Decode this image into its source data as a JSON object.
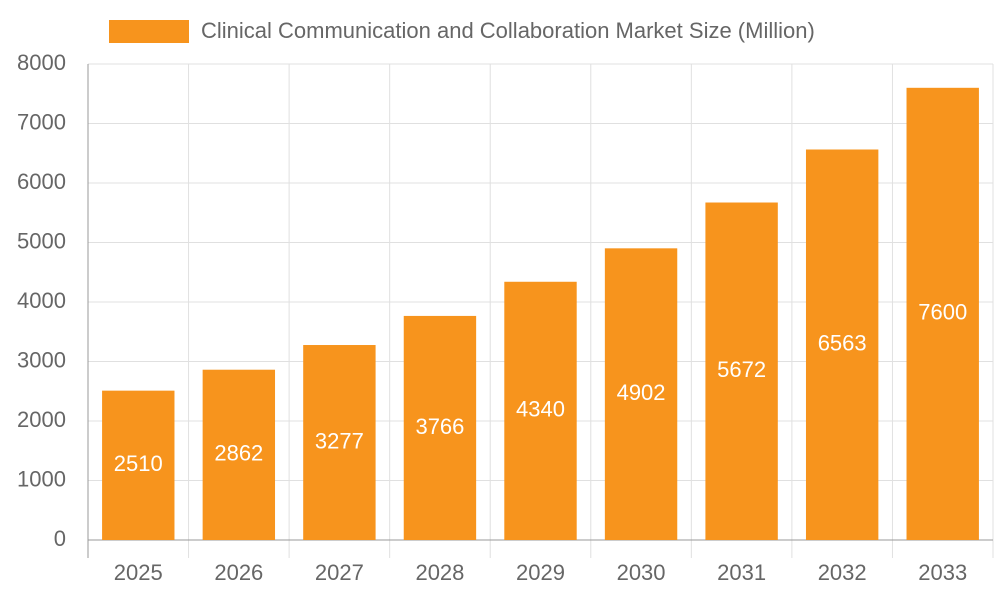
{
  "chart_data": {
    "type": "bar",
    "categories": [
      "2025",
      "2026",
      "2027",
      "2028",
      "2029",
      "2030",
      "2031",
      "2032",
      "2033"
    ],
    "series": [
      {
        "name": "Clinical Communication and Collaboration Market Size (Million)",
        "color": "#f7941d",
        "values": [
          2510,
          2862,
          3277,
          3766,
          4340,
          4902,
          5672,
          6563,
          7600
        ]
      }
    ],
    "ylim": [
      0,
      8000
    ],
    "yticks": [
      0,
      1000,
      2000,
      3000,
      4000,
      5000,
      6000,
      7000,
      8000
    ],
    "grid": true,
    "legend": "top",
    "data_labels": true
  }
}
